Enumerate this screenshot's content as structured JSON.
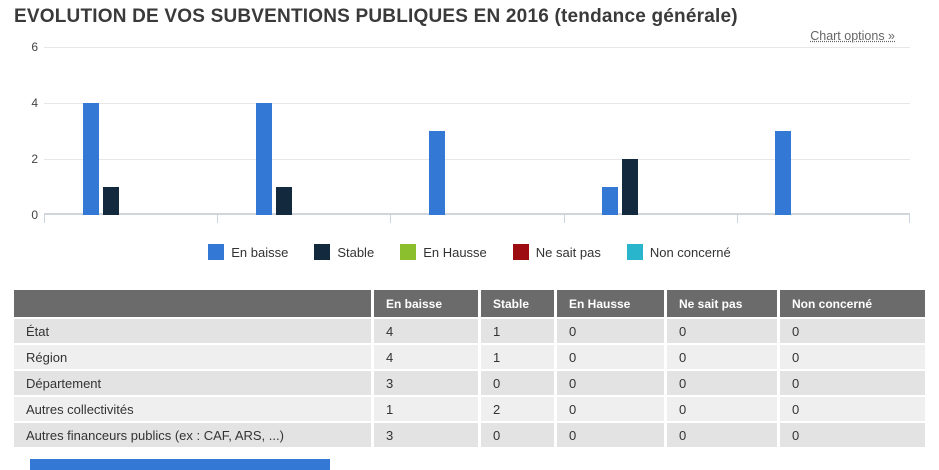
{
  "page": {
    "title": "EVOLUTION DE VOS SUBVENTIONS PUBLIQUES EN 2016 (tendance générale)",
    "chart_options_label": "Chart options »"
  },
  "chart_data": {
    "type": "bar",
    "title": "",
    "xlabel": "",
    "ylabel": "",
    "categories": [
      "État",
      "Région",
      "Département",
      "Autres collectivités",
      "Autres financeurs publics (ex : CAF, ARS, ...)"
    ],
    "series": [
      {
        "name": "En baisse",
        "color": "#3378d4",
        "values": [
          4,
          4,
          3,
          1,
          3
        ]
      },
      {
        "name": "Stable",
        "color": "#12293e",
        "values": [
          1,
          1,
          0,
          2,
          0
        ]
      },
      {
        "name": "En Hausse",
        "color": "#8cbf2d",
        "values": [
          0,
          0,
          0,
          0,
          0
        ]
      },
      {
        "name": "Ne sait pas",
        "color": "#9c0c10",
        "values": [
          0,
          0,
          0,
          0,
          0
        ]
      },
      {
        "name": "Non concerné",
        "color": "#29b6cd",
        "values": [
          0,
          0,
          0,
          0,
          0
        ]
      }
    ],
    "ylim": [
      0,
      6
    ],
    "yticks": [
      0,
      2,
      4,
      6
    ],
    "grid": true,
    "legend_position": "bottom",
    "x_axis_category_labels_visible": false
  },
  "table": {
    "columns": [
      "",
      "En baisse",
      "Stable",
      "En Hausse",
      "Ne sait pas",
      "Non concerné"
    ],
    "rows": [
      {
        "label": "État",
        "values": [
          "4",
          "1",
          "0",
          "0",
          "0"
        ]
      },
      {
        "label": "Région",
        "values": [
          "4",
          "1",
          "0",
          "0",
          "0"
        ]
      },
      {
        "label": "Département",
        "values": [
          "3",
          "0",
          "0",
          "0",
          "0"
        ]
      },
      {
        "label": "Autres collectivités",
        "values": [
          "1",
          "2",
          "0",
          "0",
          "0"
        ]
      },
      {
        "label": "Autres financeurs publics (ex : CAF, ARS, ...)",
        "values": [
          "3",
          "0",
          "0",
          "0",
          "0"
        ]
      }
    ]
  },
  "colors": {
    "table_header_bg": "#6b6b6b",
    "table_row_dark": "#e3e3e3",
    "table_row_light": "#efefef",
    "link_gray": "#666666",
    "title_gray": "#3a3a3a"
  }
}
